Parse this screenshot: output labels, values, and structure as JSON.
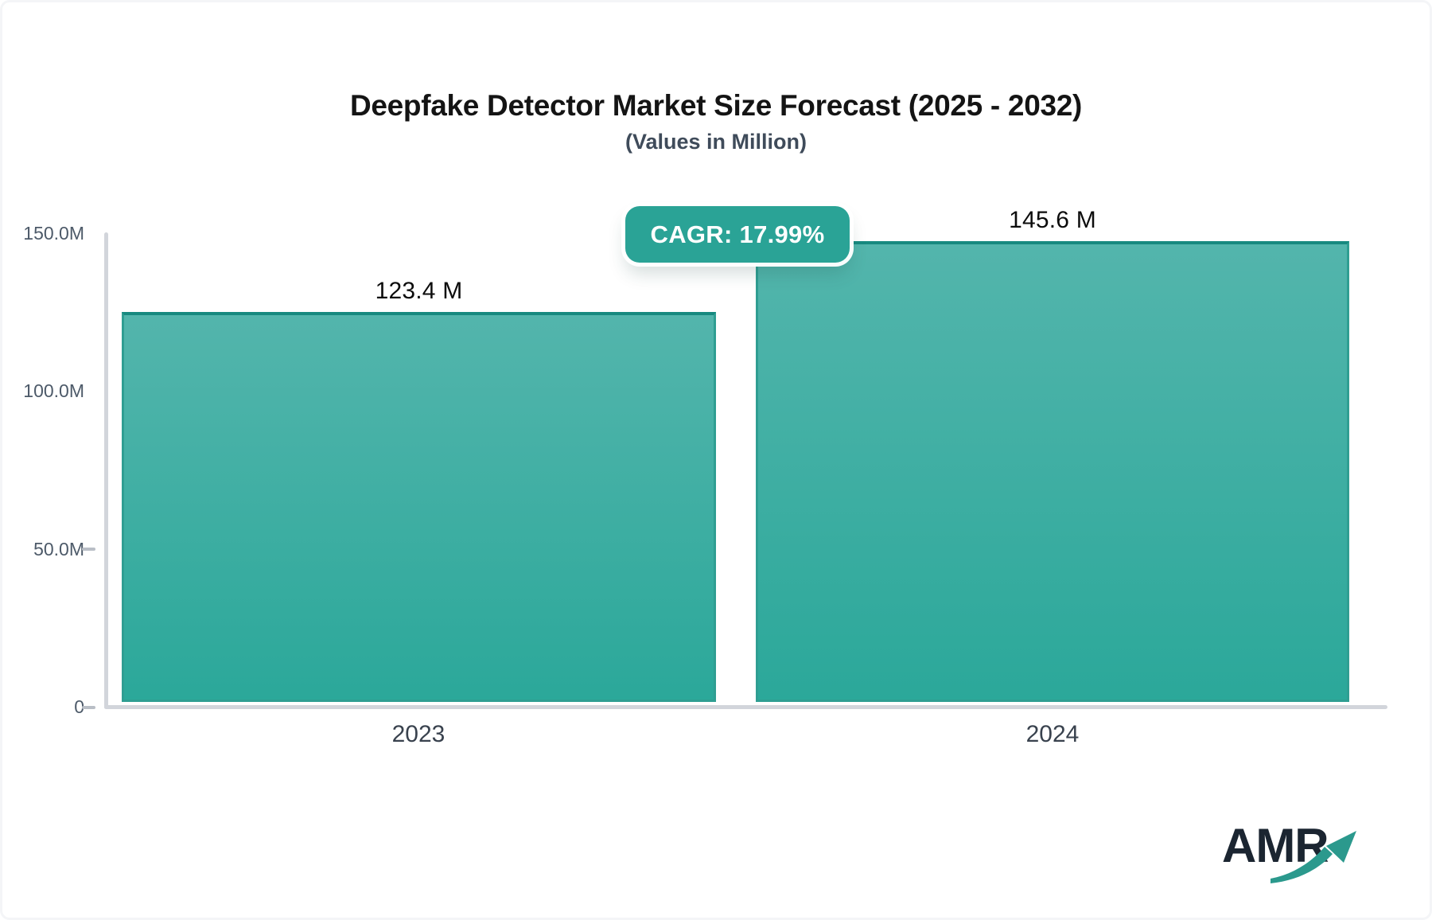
{
  "title": "Deepfake Detector Market Size Forecast (2025 - 2032)",
  "subtitle": "(Values in Million)",
  "cagr_badge": "CAGR: 17.99%",
  "logo_text": "AMR",
  "colors": {
    "bar_gradient_top": "#53b5ac",
    "bar_gradient_bottom": "#2ba89a",
    "bar_border": "#2f9e92",
    "bar_border_top": "#17897f",
    "badge_bg": "#2aa396",
    "axis_line": "#d2d5db",
    "logo_arrow": "#2b998d"
  },
  "chart_data": {
    "type": "bar",
    "title": "Deepfake Detector Market Size Forecast (2025 - 2032)",
    "subtitle": "(Values in Million)",
    "categories": [
      "2023",
      "2024"
    ],
    "values": [
      123.4,
      145.6
    ],
    "value_labels": [
      "123.4 M",
      "145.6 M"
    ],
    "cagr": "17.99%",
    "ylim": [
      0,
      150
    ],
    "yticks": [
      "150.0M",
      "100.0M",
      "50.0M",
      "0"
    ],
    "grid": false,
    "legend": false
  }
}
